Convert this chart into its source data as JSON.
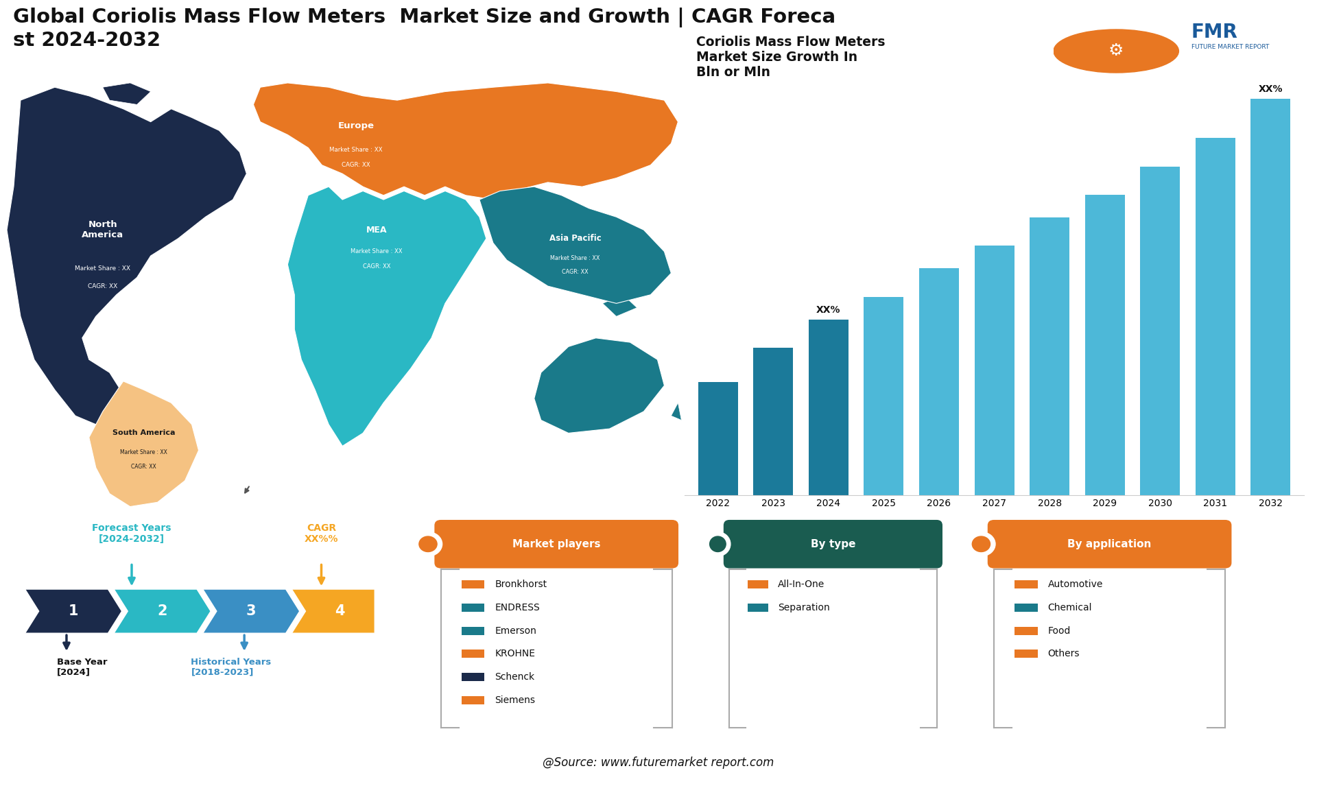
{
  "title_line1": "Global Coriolis Mass Flow Meters  Market Size and Growth | CAGR Foreca",
  "title_line2": "st 2024-2032",
  "chart_title": "Coriolis Mass Flow Meters\nMarket Size Growth In\nBln or Mln",
  "bar_years": [
    "2022",
    "2023",
    "2024",
    "2025",
    "2026",
    "2027",
    "2028",
    "2029",
    "2030",
    "2031",
    "2032"
  ],
  "bar_values": [
    1.0,
    1.3,
    1.55,
    1.75,
    2.0,
    2.2,
    2.45,
    2.65,
    2.9,
    3.15,
    3.5
  ],
  "bar_color_dark": "#1b7a9a",
  "bar_color_light": "#4db8d8",
  "bar_annotation_2024": "XX%",
  "bar_annotation_2032": "XX%",
  "bg_color": "#ffffff",
  "title_fontsize": 21,
  "segment_boxes": [
    {
      "header": "Market players",
      "header_color": "#e87722",
      "items": [
        "Bronkhorst",
        "ENDRESS",
        "Emerson",
        "KROHNE",
        "Schenck",
        "Siemens"
      ],
      "dot_colors": [
        "#e87722",
        "#1a7a8a",
        "#1a7a8a",
        "#e87722",
        "#1b2a4a",
        "#e87722"
      ]
    },
    {
      "header": "By type",
      "header_color": "#1a5c50",
      "items": [
        "All-In-One",
        "Separation"
      ],
      "dot_colors": [
        "#e87722",
        "#1a7a8a"
      ]
    },
    {
      "header": "By application",
      "header_color": "#e87722",
      "items": [
        "Automotive",
        "Chemical",
        "Food",
        "Others"
      ],
      "dot_colors": [
        "#e87722",
        "#1a7a8a",
        "#e87722",
        "#e87722"
      ]
    }
  ],
  "source_text": "@Source: www.futuremarket report.com"
}
